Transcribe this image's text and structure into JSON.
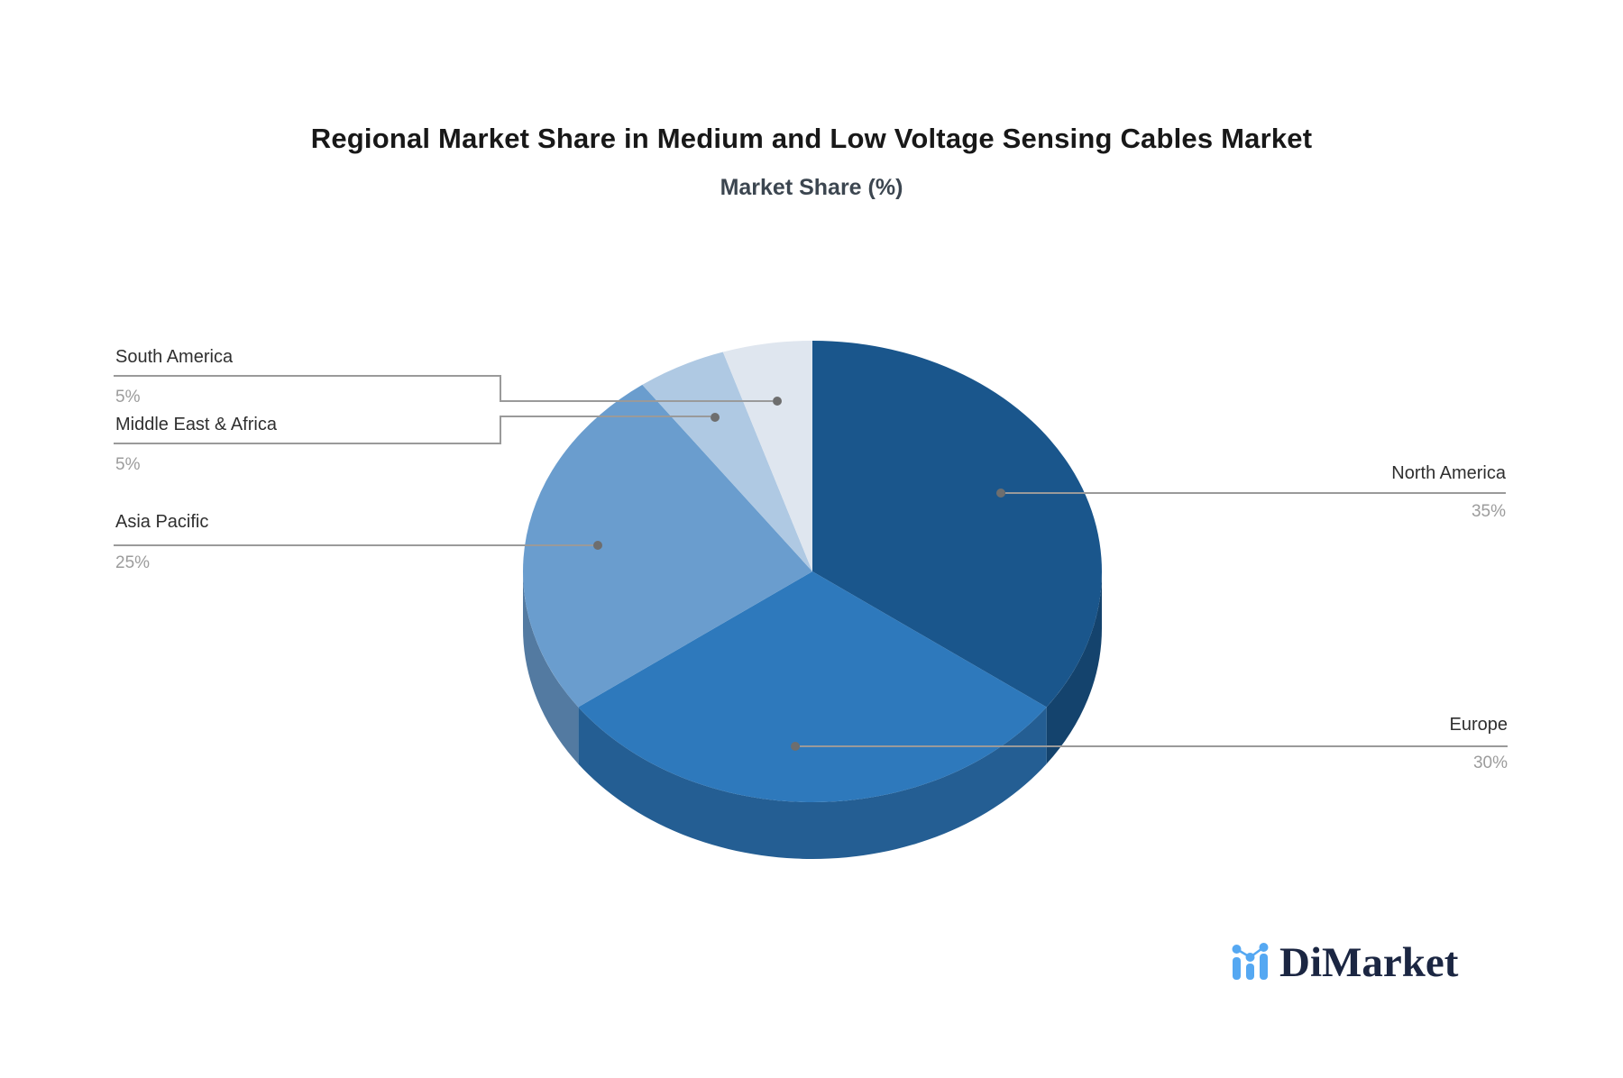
{
  "chart_data": {
    "type": "pie",
    "style": "3d",
    "title": "Regional Market Share in Medium and Low Voltage Sensing Cables Market",
    "subtitle": "Market Share (%)",
    "categories": [
      "North America",
      "Europe",
      "Asia Pacific",
      "Middle East & Africa",
      "South America"
    ],
    "values": [
      35,
      30,
      25,
      5,
      5
    ],
    "unit": "%",
    "colors": [
      "#1A568C",
      "#2E79BC",
      "#6A9DCE",
      "#AFC9E3",
      "#DFE6EF"
    ],
    "start_angle_deg": 0,
    "direction": "clockwise",
    "legend": "callout-labels",
    "leader_line_color": "#9a9a9a",
    "leader_dot_color": "#6e6e6e"
  },
  "callouts": [
    {
      "name": "North America",
      "pct": "35%"
    },
    {
      "name": "Europe",
      "pct": "30%"
    },
    {
      "name": "Asia Pacific",
      "pct": "25%"
    },
    {
      "name": "Middle East & Africa",
      "pct": "5%"
    },
    {
      "name": "South America",
      "pct": "5%"
    }
  ],
  "branding": {
    "logo_text": "DiMarket",
    "logo_text_color": "#1b2642",
    "logo_accent_color": "#55a8f2"
  }
}
